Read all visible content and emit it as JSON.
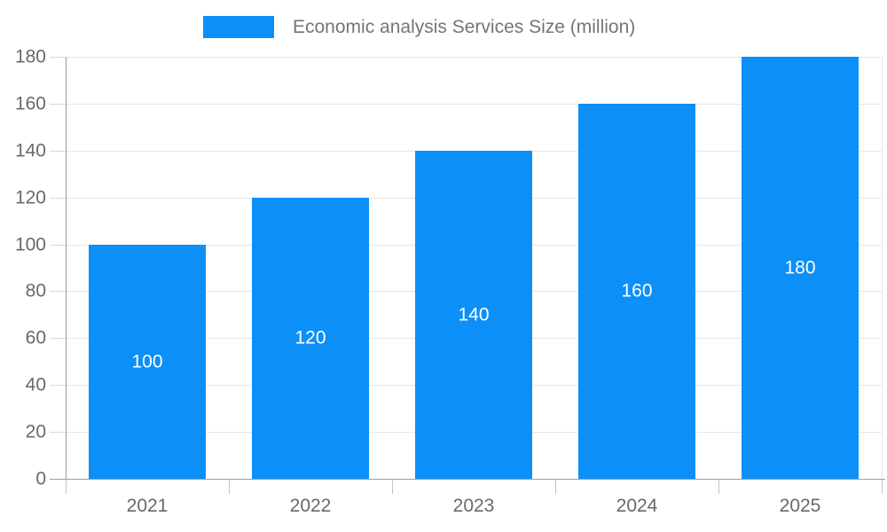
{
  "chart_data": {
    "type": "bar",
    "categories": [
      "2021",
      "2022",
      "2023",
      "2024",
      "2025"
    ],
    "series": [
      {
        "name": "Economic analysis Services Size (million)",
        "values": [
          100,
          120,
          140,
          160,
          180
        ]
      }
    ],
    "title": "",
    "xlabel": "",
    "ylabel": "",
    "ylim": [
      0,
      180
    ],
    "ytick_step": 20,
    "ytick_labels": [
      "0",
      "20",
      "40",
      "60",
      "80",
      "100",
      "120",
      "140",
      "160",
      "180"
    ],
    "bar_value_labels": [
      "100",
      "120",
      "140",
      "160",
      "180"
    ],
    "grid": true,
    "legend_position": "top",
    "colors": {
      "bar": "#0D8FF8",
      "bar_value_text": "#FFFFFF",
      "axis_text": "#696969",
      "legend_text": "#757575",
      "gridline": "#E6E6E6",
      "axis_line": "#9E9E9E",
      "tick_mark": "#C4C4C4"
    }
  }
}
